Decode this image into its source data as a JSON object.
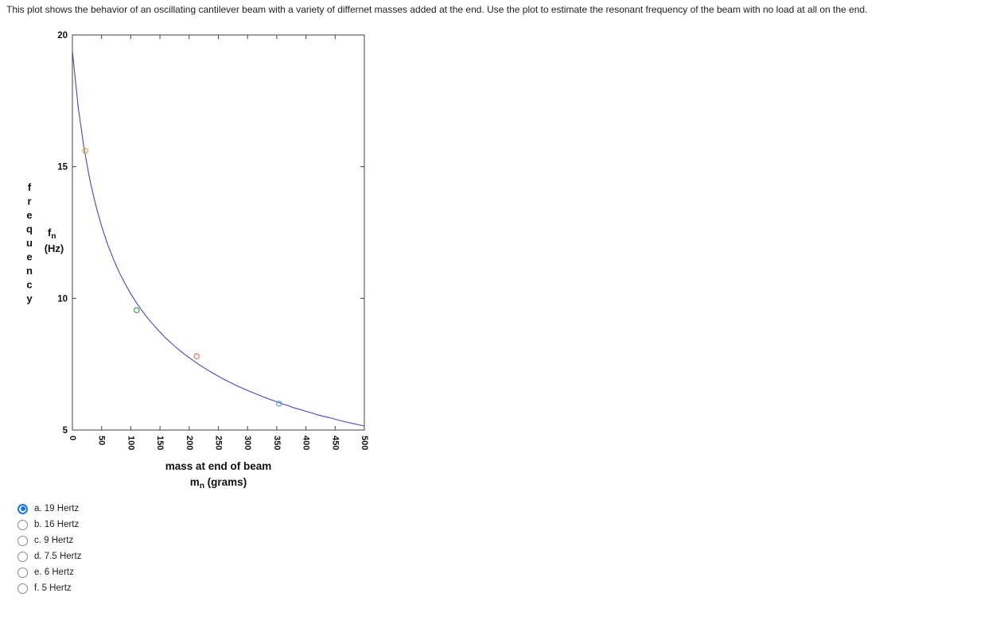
{
  "instruction": "This plot shows the behavior of an oscillating cantilever beam with a variety of differnet masses added at the end. Use the plot to estimate the resonant frequency of the beam with no load at all on the end.",
  "chart_data": {
    "type": "line",
    "title": "",
    "xlabel": "mass at end of beam",
    "xlabel_symbol": "m",
    "xlabel_symbol_sub": "n",
    "xlabel_units": "(grams)",
    "ylabel": "frequency",
    "ylabel_symbol": "f",
    "ylabel_symbol_sub": "n",
    "ylabel_units": "(Hz)",
    "xlim": [
      0,
      500
    ],
    "ylim": [
      5,
      20
    ],
    "xticks": [
      0,
      50,
      100,
      150,
      200,
      250,
      300,
      350,
      400,
      450,
      500
    ],
    "yticks": [
      5,
      10,
      15,
      20
    ],
    "grid": false,
    "axis_color": "#404040",
    "curve": {
      "name": "resonant frequency vs added mass",
      "color": "#4646c8",
      "x": [
        0,
        10,
        20,
        30,
        40,
        50,
        60,
        70,
        80,
        90,
        100,
        110,
        120,
        130,
        140,
        150,
        160,
        170,
        180,
        190,
        200,
        210,
        220,
        230,
        240,
        250,
        260,
        270,
        280,
        290,
        300,
        310,
        320,
        330,
        340,
        350,
        360,
        370,
        380,
        390,
        400,
        410,
        420,
        430,
        440,
        450,
        460,
        470,
        480,
        490,
        500
      ],
      "y": [
        19.39,
        17.25,
        15.69,
        14.49,
        13.53,
        12.74,
        12.07,
        11.5,
        11.0,
        10.56,
        10.17,
        9.82,
        9.51,
        9.22,
        8.96,
        8.72,
        8.49,
        8.29,
        8.09,
        7.91,
        7.75,
        7.59,
        7.44,
        7.3,
        7.17,
        7.04,
        6.92,
        6.81,
        6.7,
        6.6,
        6.5,
        6.41,
        6.32,
        6.23,
        6.15,
        6.07,
        5.99,
        5.92,
        5.84,
        5.78,
        5.71,
        5.65,
        5.58,
        5.52,
        5.47,
        5.41,
        5.35,
        5.3,
        5.25,
        5.2,
        5.15
      ]
    },
    "markers": [
      {
        "name": "data-point-orange",
        "x": 22,
        "y": 15.6,
        "color": "#e2a33c"
      },
      {
        "name": "data-point-green",
        "x": 110,
        "y": 9.55,
        "color": "#3fa34d"
      },
      {
        "name": "data-point-red",
        "x": 213,
        "y": 7.8,
        "color": "#d07878"
      },
      {
        "name": "data-point-cyan",
        "x": 354,
        "y": 6.0,
        "color": "#53a7d7"
      }
    ],
    "no_load_frequency_estimate": 19.39
  },
  "question": {
    "radio_selected_color": "#1a73e8",
    "options": [
      {
        "key": "a",
        "label": "a. 19 Hertz",
        "selected": true
      },
      {
        "key": "b",
        "label": "b. 16 Hertz",
        "selected": false
      },
      {
        "key": "c",
        "label": "c. 9 Hertz",
        "selected": false
      },
      {
        "key": "d",
        "label": "d. 7.5 Hertz",
        "selected": false
      },
      {
        "key": "e",
        "label": "e. 6 Hertz",
        "selected": false
      },
      {
        "key": "f",
        "label": "f. 5 Hertz",
        "selected": false
      }
    ]
  }
}
